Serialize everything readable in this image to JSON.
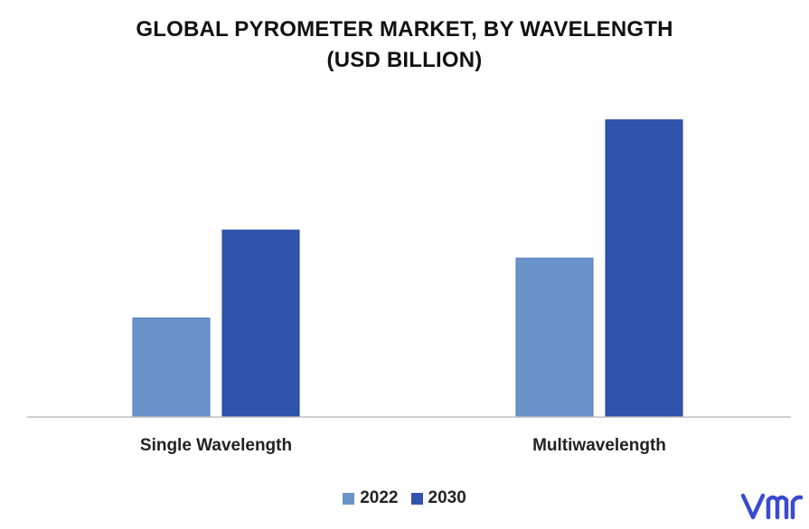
{
  "chart_data": {
    "type": "bar",
    "title": "GLOBAL PYROMETER MARKET, BY WAVELENGTH",
    "subtitle": "(USD BILLION)",
    "categories": [
      "Single Wavelength",
      "Multiwavelength"
    ],
    "series": [
      {
        "name": "2022",
        "values": [
          0.106,
          0.17
        ]
      },
      {
        "name": "2030",
        "values": [
          0.2,
          0.318
        ]
      }
    ],
    "ylim": [
      0,
      0.34
    ],
    "xlabel": "",
    "ylabel": "",
    "grid": false,
    "legend": "bottom-center",
    "colors": [
      "#6a93ca",
      "#2f54ad"
    ]
  },
  "logo": {
    "name": "vmr-logo",
    "text": "vmr",
    "color": "#3a4bd0"
  }
}
